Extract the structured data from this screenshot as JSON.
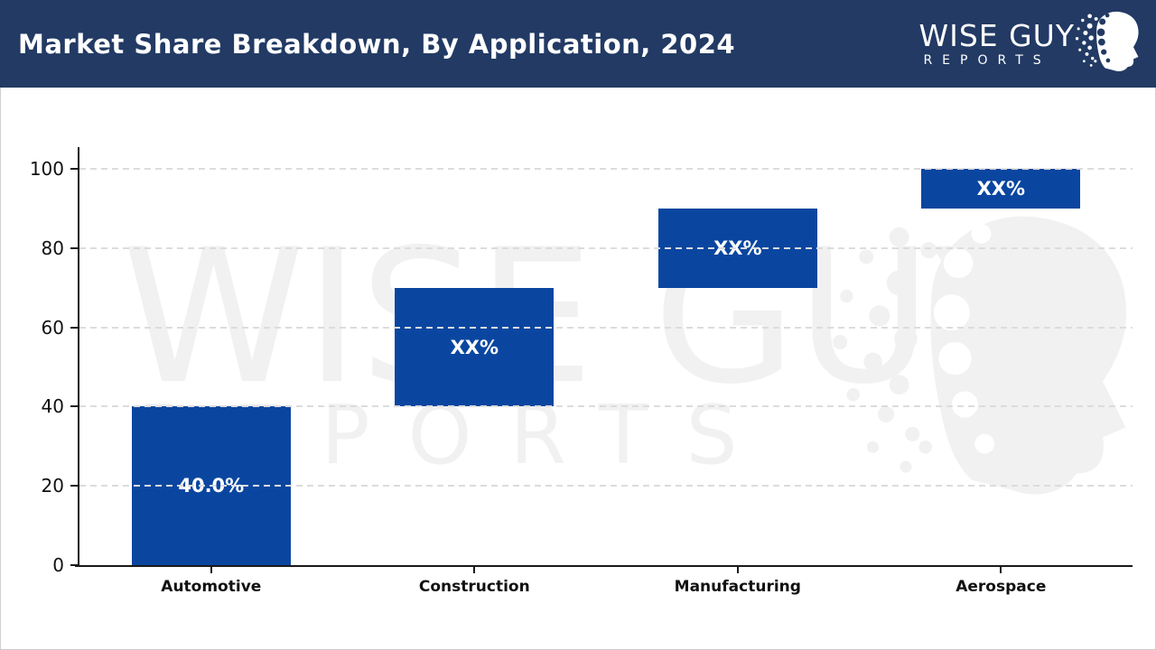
{
  "header": {
    "title": "Market Share Breakdown, By Application, 2024",
    "background_color": "#223a64",
    "logo": {
      "line1": "WISE GUY",
      "line2": "REPORTS",
      "icon": "dotted-head-profile-icon"
    }
  },
  "watermark": {
    "line1": "WISE GUY",
    "line2": "REPORTS",
    "icon": "dotted-head-profile-icon"
  },
  "chart_data": {
    "type": "bar",
    "subtype": "waterfall",
    "title": "Market Share Breakdown, By Application, 2024",
    "categories": [
      "Automotive",
      "Construction",
      "Manufacturing",
      "Aerospace"
    ],
    "segments": [
      {
        "category": "Automotive",
        "start": 0,
        "end": 40,
        "label": "40.0%"
      },
      {
        "category": "Construction",
        "start": 40,
        "end": 70,
        "label": "XX%"
      },
      {
        "category": "Manufacturing",
        "start": 70,
        "end": 90,
        "label": "XX%"
      },
      {
        "category": "Aerospace",
        "start": 90,
        "end": 100,
        "label": "XX%"
      }
    ],
    "values": [
      40,
      30,
      20,
      10
    ],
    "value_labels": [
      "40.0%",
      "XX%",
      "XX%",
      "XX%"
    ],
    "ylim": [
      0,
      100
    ],
    "yticks": [
      0,
      20,
      40,
      60,
      80,
      100
    ],
    "xlabel": "",
    "ylabel": "",
    "legend": false,
    "grid": true,
    "grid_style": "dashed-horizontal",
    "bar_color": "#0a46a0",
    "label_color": "#ffffff"
  },
  "colors": {
    "header_navy": "#223a64",
    "bar_blue": "#0a46a0",
    "gridline_gray": "#dcdcdc",
    "watermark_gray": "#f1f1f2",
    "axis_black": "#1a1a1a"
  }
}
